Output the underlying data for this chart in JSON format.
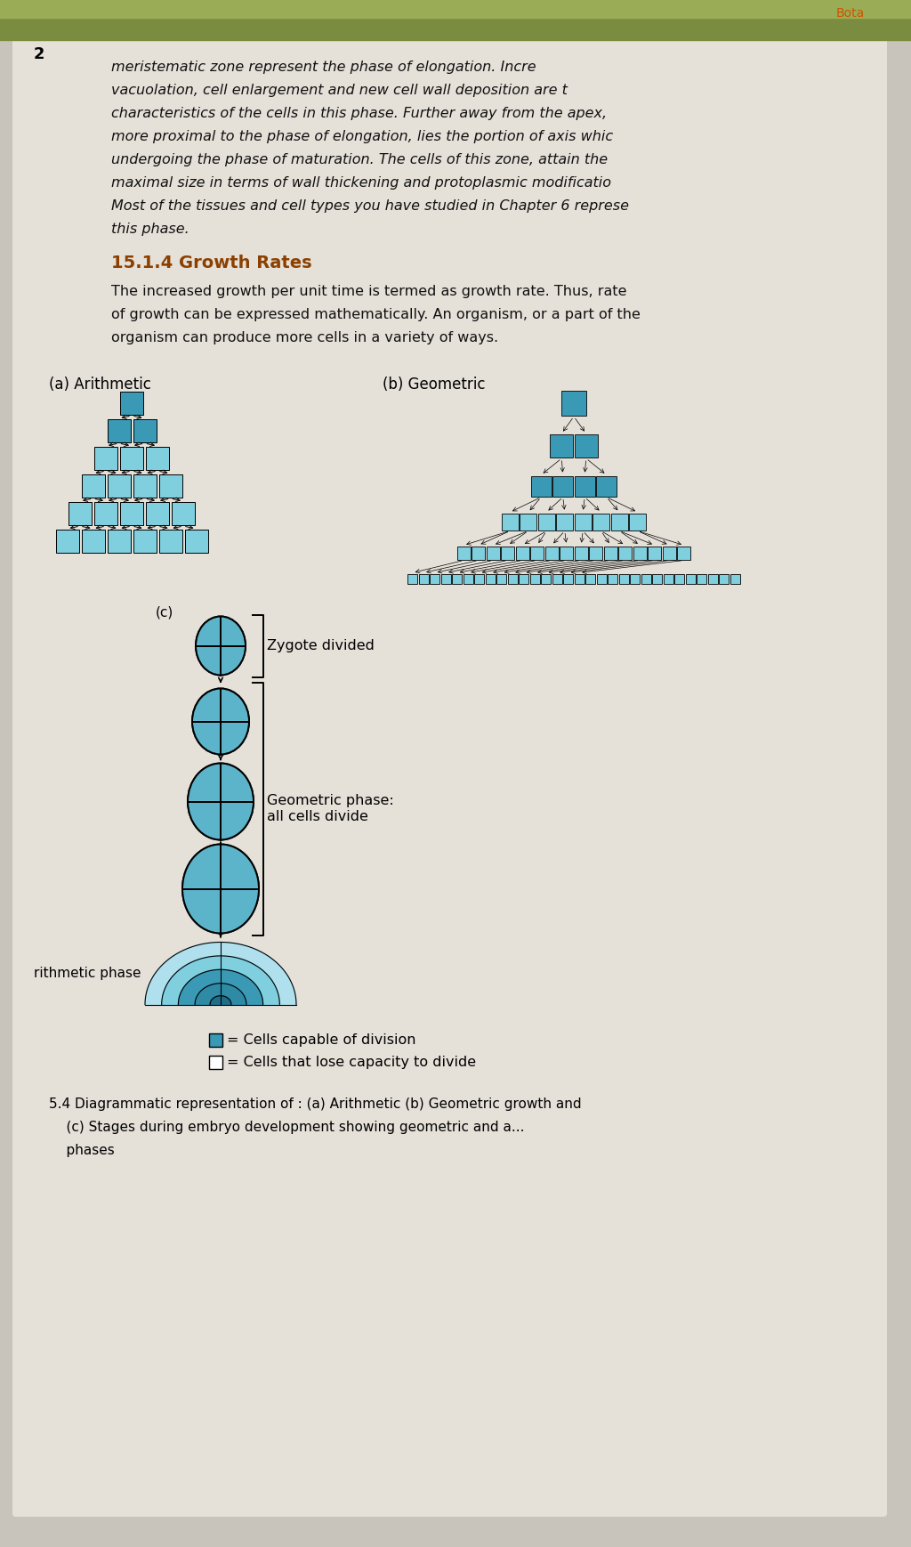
{
  "bg_color": "#c8c4bc",
  "page_bg": "#e5e0d8",
  "title_section": "15.1.4 Growth Rates",
  "title_color": "#8B4000",
  "para1_lines": [
    "meristematic zone represent the phase of elongation. Incre",
    "vacuolation, cell enlargement and new cell wall deposition are t",
    "characteristics of the cells in this phase. Further away from the apex,",
    "more proximal to the phase of elongation, lies the portion of axis whic",
    "undergoing the phase of maturation. The cells of this zone, attain the",
    "maximal size in terms of wall thickening and protoplasmic modificatio",
    "Most of the tissues and cell types you have studied in Chapter 6 represe",
    "this phase."
  ],
  "para2_lines": [
    "The increased growth per unit time is termed as growth rate. Thus, rate",
    "of growth can be expressed mathematically. An organism, or a part of the",
    "organism can produce more cells in a variety of ways."
  ],
  "label_a": "(a) Arithmetic",
  "label_b": "(b) Geometric",
  "label_c": "(c)",
  "label_arith_phase": "rithmetic phase",
  "label_zygote": "Zygote divided",
  "label_geom_phase": "Geometric phase:\nall cells divide",
  "legend1": "= Cells capable of division",
  "legend2": "= Cells that lose capacity to divide",
  "caption_lines": [
    "5.4 Diagrammatic representation of : (a) Arithmetic (b) Geometric growth and",
    "    (c) Stages during embryo development showing geometric and a...",
    "    phases"
  ],
  "cell_blue": "#3a9ab5",
  "cell_blue_dark": "#1e6e8a",
  "cell_blue_mid": "#2e8aa5",
  "cell_blue_light": "#7fcfdf",
  "cell_blue_xlight": "#b0e0ee"
}
